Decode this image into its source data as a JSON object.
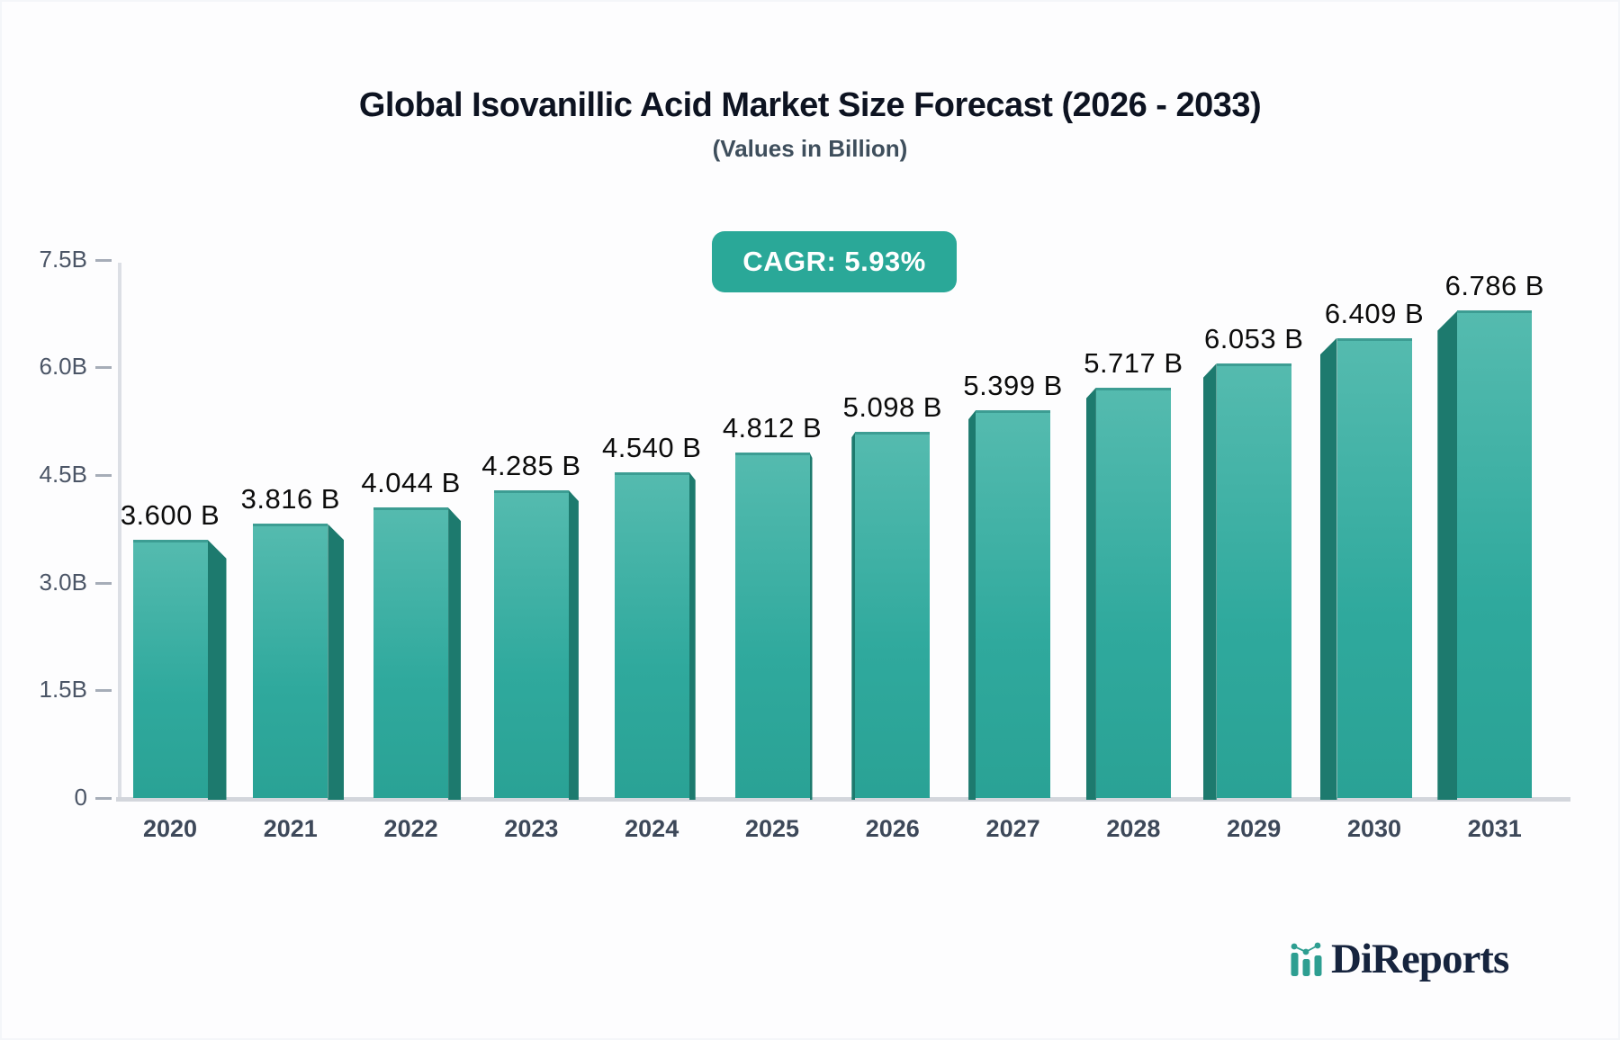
{
  "header": {
    "title": "Global Isovanillic Acid Market Size Forecast (2026 - 2033)",
    "subtitle": "(Values in Billion)"
  },
  "badge": {
    "label": "CAGR: 5.93%",
    "color": "#2aa898"
  },
  "chart_data": {
    "type": "bar",
    "title": "Global Isovanillic Acid Market Size Forecast (2026 - 2033)",
    "subtitle": "(Values in Billion)",
    "categories": [
      "2020",
      "2021",
      "2022",
      "2023",
      "2024",
      "2025",
      "2026",
      "2027",
      "2028",
      "2029",
      "2030",
      "2031"
    ],
    "values": [
      3.6,
      3.816,
      4.044,
      4.285,
      4.54,
      4.812,
      5.098,
      5.399,
      5.717,
      6.053,
      6.409,
      6.786
    ],
    "value_labels": [
      "3.600 B",
      "3.816 B",
      "4.044 B",
      "4.285 B",
      "4.540 B",
      "4.812 B",
      "5.098 B",
      "5.399 B",
      "5.717 B",
      "6.053 B",
      "6.409 B",
      "6.786 B"
    ],
    "xlabel": "",
    "ylabel": "",
    "ylim": [
      0,
      7.5
    ],
    "yticks": [
      {
        "label": "7.5B",
        "value": 7.5
      },
      {
        "label": "6.0B",
        "value": 6.0
      },
      {
        "label": "4.5B",
        "value": 4.5
      },
      {
        "label": "3.0B",
        "value": 3.0
      },
      {
        "label": "1.5B",
        "value": 1.5
      },
      {
        "label": "0",
        "value": 0
      }
    ],
    "grid": false,
    "legend": false,
    "style_3d": true,
    "bar_color_top": "#55bbaf",
    "bar_color_bottom": "#2aa295",
    "bar_side_color": "#1d7a6e"
  },
  "footer": {
    "logo_text": "DiReports",
    "logo_icon": "bar-chart-logo-icon",
    "logo_accent_color": "#2d9e91",
    "logo_text_color": "#16243e"
  }
}
